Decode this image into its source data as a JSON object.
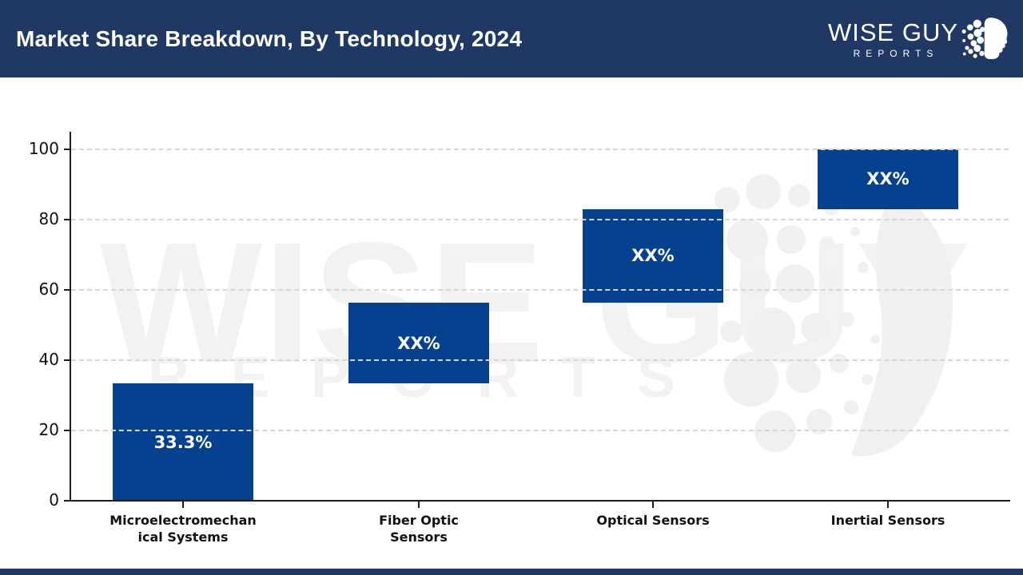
{
  "header": {
    "title": "Market Share Breakdown, By Technology, 2024",
    "logo_line1": "WISE GUY",
    "logo_line2": "REPORTS"
  },
  "watermark": {
    "line1": "WISE GUY",
    "line2": "REPORTS"
  },
  "colors": {
    "header_bg": "#1f3864",
    "footer_bg": "#1f3864",
    "bar_fill": "#05418f",
    "bar_label_text": "#ffffff",
    "axis": "#1a1a1a",
    "gridline": "#d6d6d6",
    "tick_text": "#111111",
    "watermark": "#f2f2f2"
  },
  "chart_data": {
    "type": "bar",
    "subtype": "stacked-waterfall-breakdown",
    "title": "Market Share Breakdown, By Technology, 2024",
    "categories": [
      "Microelectromechanical Systems",
      "Fiber Optic Sensors",
      "Optical Sensors",
      "Inertial Sensors"
    ],
    "category_tick_lines": [
      [
        "Microelectromechan",
        "ical Systems"
      ],
      [
        "Fiber Optic",
        "Sensors"
      ],
      [
        "Optical Sensors"
      ],
      [
        "Inertial Sensors"
      ]
    ],
    "segments": [
      {
        "category": "Microelectromechanical Systems",
        "start": 0,
        "end": 33.3,
        "label": "33.3%"
      },
      {
        "category": "Fiber Optic Sensors",
        "start": 33.3,
        "end": 56.4,
        "label": "XX%"
      },
      {
        "category": "Optical Sensors",
        "start": 56.4,
        "end": 83.0,
        "label": "XX%"
      },
      {
        "category": "Inertial Sensors",
        "start": 83.0,
        "end": 100.0,
        "label": "XX%"
      }
    ],
    "yticks": [
      0,
      20,
      40,
      60,
      80,
      100
    ],
    "ylim": [
      0,
      105
    ],
    "xlabel": "",
    "ylabel": "",
    "grid": "horizontal-dashed",
    "legend": "none"
  }
}
